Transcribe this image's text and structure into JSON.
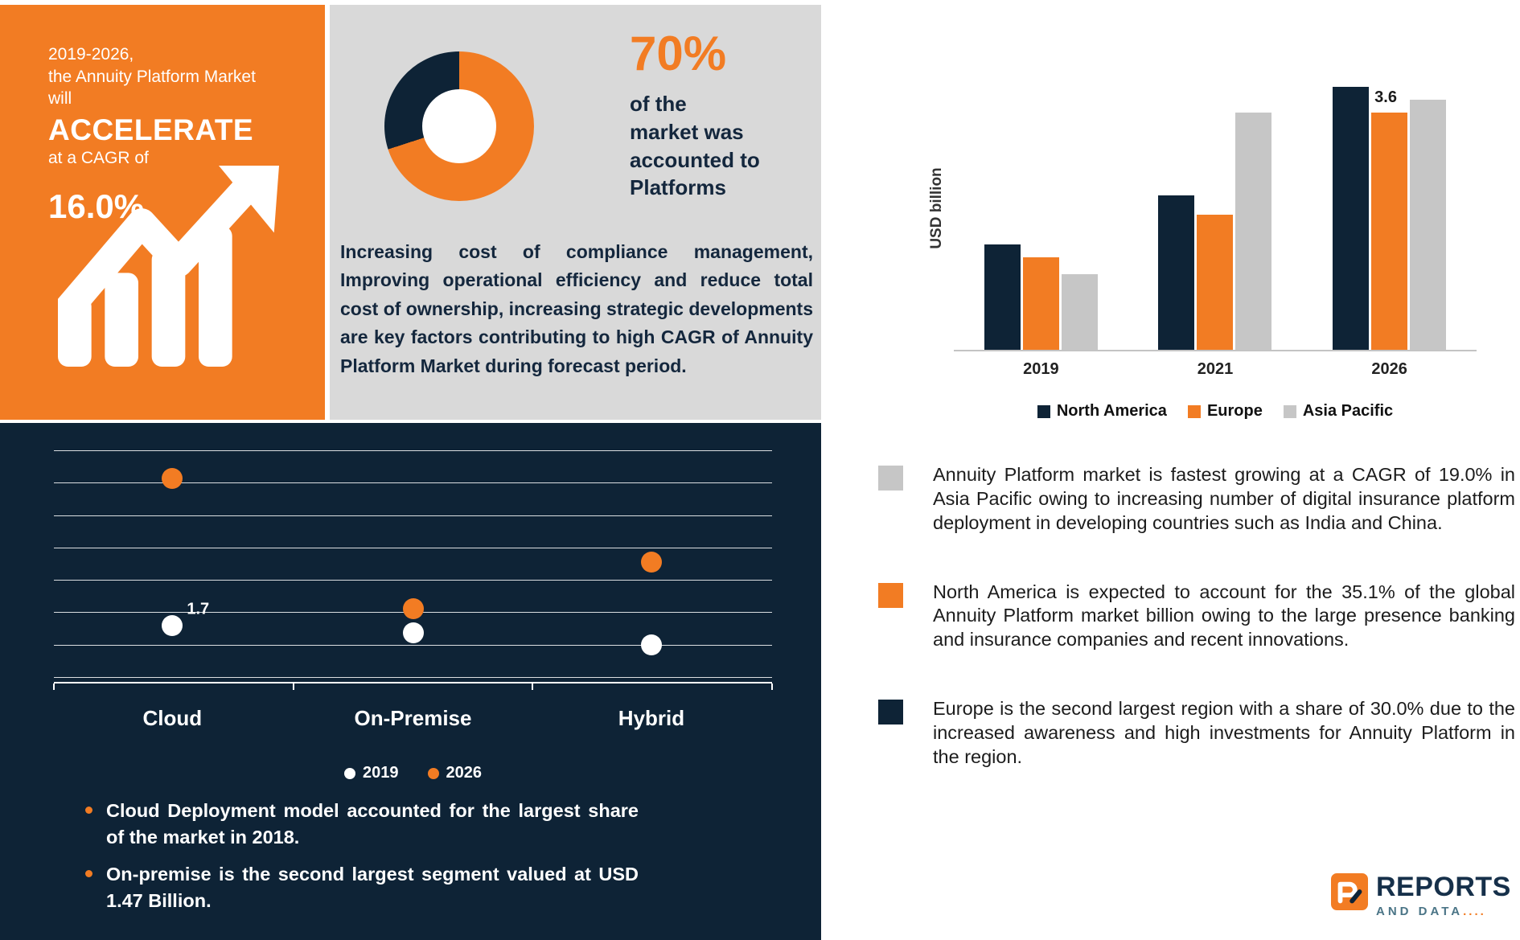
{
  "colors": {
    "orange": "#F27C23",
    "navy": "#0E2336",
    "panel_gray": "#D9D9D9",
    "bar_gray": "#C6C6C6"
  },
  "accelerate_panel": {
    "intro": "2019-2026,\nthe Annuity Platform  Market\nwill",
    "accelerate": "ACCELERATE",
    "cagr_label": "at a CAGR of",
    "cagr_value": "16.0%"
  },
  "platform_panel": {
    "percent": "70%",
    "caption": "of the\nmarket was\naccounted to\nPlatforms",
    "paragraph": "Increasing cost of compliance management, Improving operational efficiency and reduce total cost of ownership, increasing strategic developments are key factors contributing to high CAGR of Annuity Platform Market during forecast period."
  },
  "deployment_panel": {
    "bullets": [
      "Cloud Deployment model accounted for the largest share of the market in 2018.",
      "On-premise is the second largest segment valued at USD 1.47 Billion."
    ]
  },
  "regional_panel": {
    "insights": [
      {
        "color": "#C6C6C6",
        "text": "Annuity Platform market is fastest growing at a CAGR of 19.0% in Asia Pacific owing to increasing number of digital insurance platform deployment in developing countries such as India and China."
      },
      {
        "color": "#F27C23",
        "text": "North America is expected to account for the 35.1% of the global Annuity Platform market billion owing to the large presence banking and insurance companies and recent innovations."
      },
      {
        "color": "#0E2336",
        "text": "Europe is the second largest region with a share of 30.0% due to the increased awareness and high investments for Annuity Platform in the region."
      }
    ]
  },
  "logo": {
    "name": "REPORTS",
    "tagline": "AND DATA",
    "dots": "...."
  },
  "chart_data": [
    {
      "type": "pie",
      "donut": true,
      "labels": [
        "Platforms",
        "Other"
      ],
      "values": [
        70,
        30
      ],
      "colors": [
        "#F27C23",
        "#0E2336"
      ],
      "title": "70% of the market was accounted to Platforms"
    },
    {
      "type": "scatter",
      "categories": [
        "Cloud",
        "On-Premise",
        "Hybrid"
      ],
      "series": [
        {
          "name": "2019",
          "color": "#FFFFFF",
          "values": [
            1.7,
            1.47,
            1.1
          ]
        },
        {
          "name": "2026",
          "color": "#F27C23",
          "values": [
            6.1,
            2.2,
            3.6
          ]
        }
      ],
      "ylim": [
        0,
        7
      ],
      "gridlines": 8,
      "legend_position": "bottom",
      "data_labels": [
        {
          "series": 0,
          "category": 0,
          "text": "1.7"
        }
      ]
    },
    {
      "type": "bar",
      "categories": [
        "2019",
        "2021",
        "2026"
      ],
      "series": [
        {
          "name": "North America",
          "color": "#0E2336",
          "values": [
            1.6,
            2.35,
            4.0
          ]
        },
        {
          "name": "Europe",
          "color": "#F27C23",
          "values": [
            1.4,
            2.05,
            3.6
          ]
        },
        {
          "name": "Asia Pacific",
          "color": "#C6C6C6",
          "values": [
            1.15,
            3.6,
            3.8
          ]
        }
      ],
      "ylabel": "USD billion",
      "ylim": [
        0,
        4.3
      ],
      "legend_position": "bottom",
      "data_labels": [
        {
          "series": 1,
          "category": 2,
          "text": "3.6"
        }
      ]
    }
  ]
}
